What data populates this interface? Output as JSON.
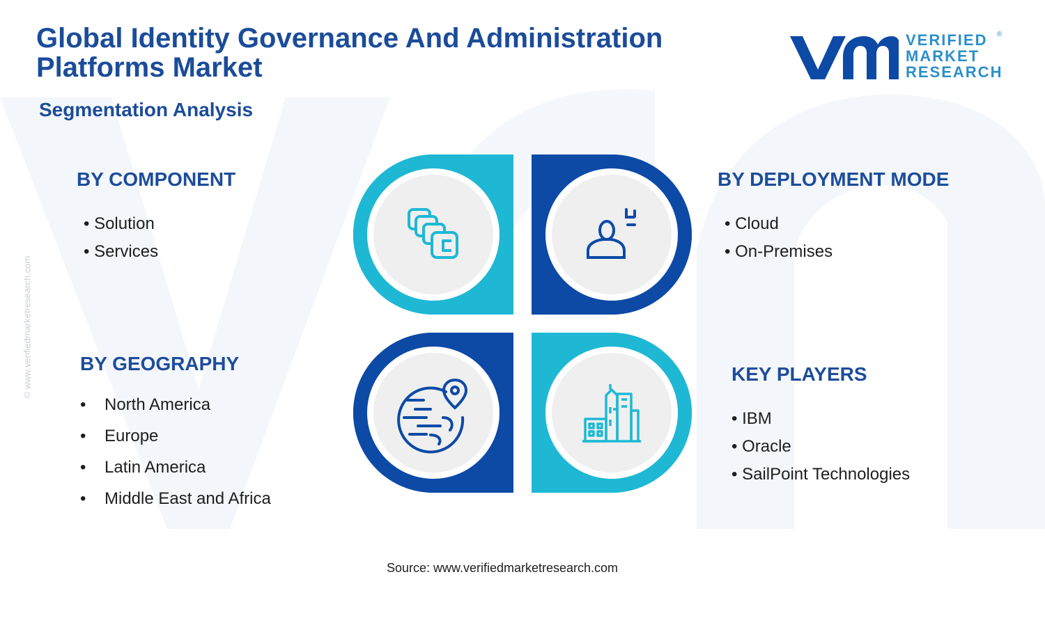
{
  "header": {
    "title": "Global Identity Governance And Administration Platforms Market",
    "subtitle": "Segmentation Analysis"
  },
  "logo": {
    "line1": "VERIFIED",
    "line2": "MARKET",
    "line3": "RESEARCH",
    "registered": "®"
  },
  "watermark": "© www.verifiedmarketresearch.com",
  "segments": {
    "component": {
      "heading": "BY COMPONENT",
      "items": [
        "Solution",
        "Services"
      ],
      "icon": "stacked-layers-icon"
    },
    "deployment": {
      "heading": "BY DEPLOYMENT MODE",
      "items": [
        "Cloud",
        "On-Premises"
      ],
      "icon": "user-plus-icon"
    },
    "geography": {
      "heading": "BY GEOGRAPHY",
      "items": [
        "North America",
        "Europe",
        "Latin America",
        "Middle East and Africa"
      ],
      "icon": "globe-location-icon"
    },
    "players": {
      "heading": "KEY PLAYERS",
      "items": [
        "IBM",
        "Oracle",
        "SailPoint Technologies"
      ],
      "icon": "city-buildings-icon"
    }
  },
  "footer": {
    "source": "Source: www.verifiedmarketresearch.com"
  },
  "colors": {
    "dark_blue": "#0d4aa6",
    "cyan": "#1eb8d4",
    "title_blue": "#1b4c9a",
    "circle_fill": "#efefef"
  }
}
